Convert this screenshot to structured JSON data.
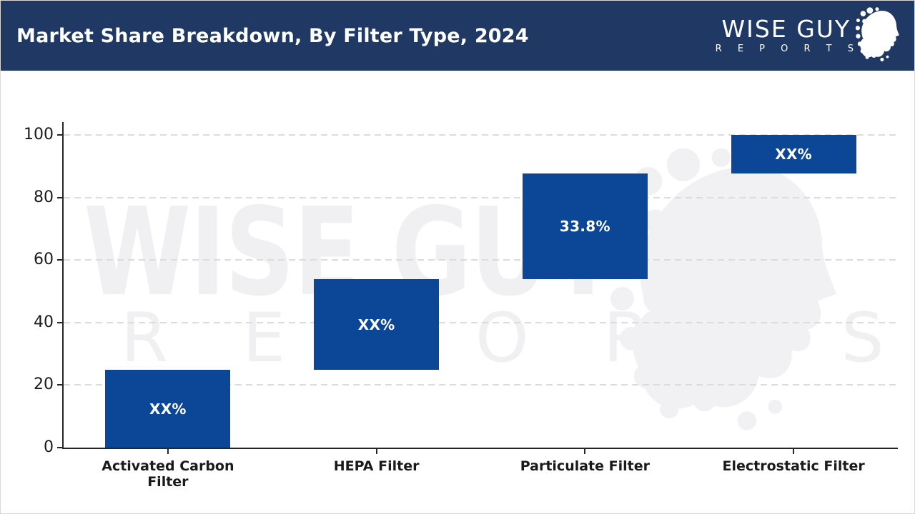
{
  "header": {
    "title": "Market Share Breakdown, By Filter Type, 2024",
    "bg_color": "#203864",
    "logo": {
      "line1": "WISE GUY",
      "line2": "R E P O R T S"
    }
  },
  "watermark": {
    "line1": "WISE GUY",
    "line2": "R E P O R T S"
  },
  "chart_data": {
    "type": "bar",
    "subtype": "floating-waterfall",
    "title": "Market Share Breakdown, By Filter Type, 2024",
    "xlabel": "",
    "ylabel": "",
    "categories": [
      "Activated Carbon Filter",
      "HEPA Filter",
      "Particulate Filter",
      "Electrostatic Filter"
    ],
    "segments": [
      {
        "category": "Activated Carbon Filter",
        "start": 0,
        "end": 24.8,
        "label": "XX%"
      },
      {
        "category": "HEPA Filter",
        "start": 24.8,
        "end": 53.8,
        "label": "XX%"
      },
      {
        "category": "Particulate Filter",
        "start": 53.8,
        "end": 87.6,
        "label": "33.8%"
      },
      {
        "category": "Electrostatic Filter",
        "start": 87.6,
        "end": 100,
        "label": "XX%"
      }
    ],
    "yticks": [
      0,
      20,
      40,
      60,
      80,
      100
    ],
    "ylim": [
      0,
      105
    ],
    "grid": true,
    "grid_style": "dashed",
    "bar_color": "#0b4796",
    "bar_label_color": "#ffffff",
    "legend": "none"
  }
}
